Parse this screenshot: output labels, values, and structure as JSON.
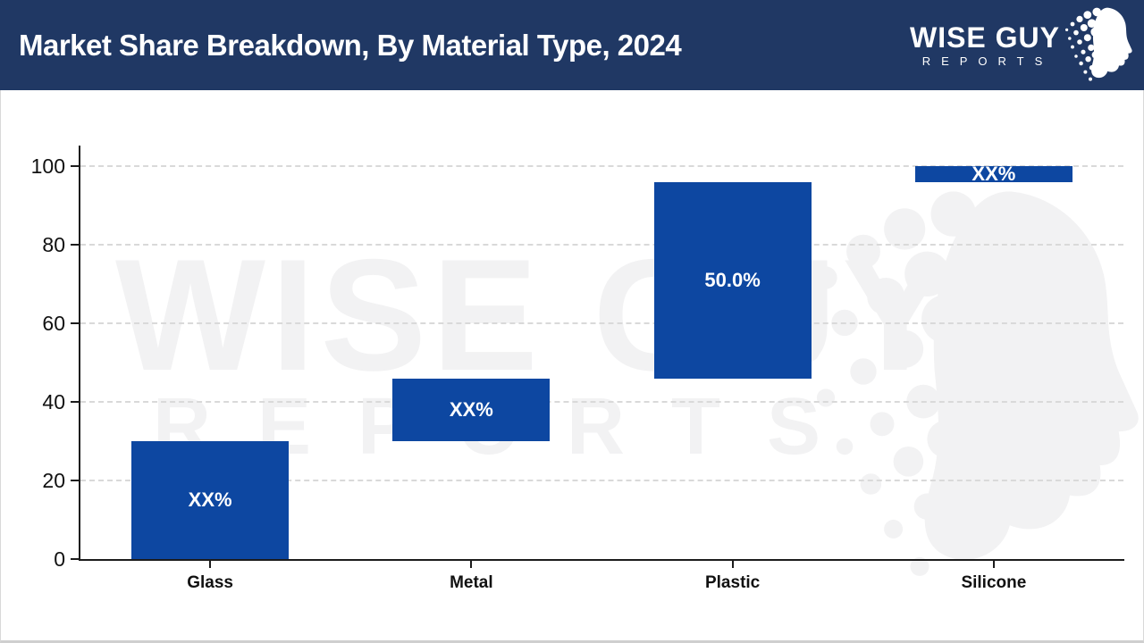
{
  "header": {
    "title": "Market Share Breakdown, By Material Type, 2024",
    "logo": {
      "wordmark": "WISE GUY",
      "subtitle": "REPORTS"
    }
  },
  "watermark": {
    "wordmark": "WISE GUY",
    "subtitle": "REPORTS"
  },
  "chart_data": {
    "type": "bar",
    "subtype": "waterfall",
    "title": "Market Share Breakdown, By Material Type, 2024",
    "categories": [
      "Glass",
      "Metal",
      "Plastic",
      "Silicone"
    ],
    "segments": [
      {
        "category": "Glass",
        "start": 0,
        "end": 30,
        "label": "XX%"
      },
      {
        "category": "Metal",
        "start": 30,
        "end": 46,
        "label": "XX%"
      },
      {
        "category": "Plastic",
        "start": 46,
        "end": 96,
        "label": "50.0%"
      },
      {
        "category": "Silicone",
        "start": 96,
        "end": 100,
        "label": "XX%"
      }
    ],
    "xlabel": "",
    "ylabel": "",
    "ylim": [
      0,
      105
    ],
    "yticks": [
      0,
      20,
      40,
      60,
      80,
      100
    ],
    "grid": "horizontal-dashed",
    "legend": "none"
  },
  "colors": {
    "header_bg": "#203864",
    "title_text": "#ffffff",
    "bar": "#0d47a1",
    "bar_label": "#ffffff",
    "grid": "#d9d9d9",
    "axis": "#1c1c1c",
    "tick_label": "#111111",
    "watermark": "#f2f2f3"
  }
}
